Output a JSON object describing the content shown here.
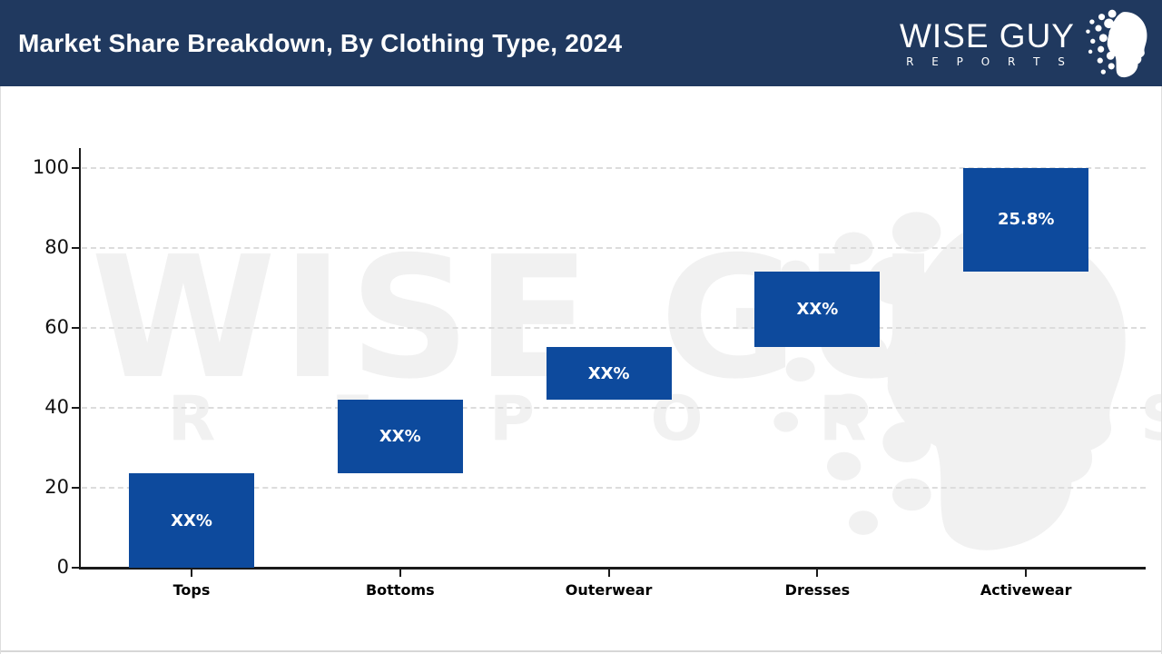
{
  "header": {
    "title": "Market Share Breakdown, By Clothing Type, 2024",
    "logo": {
      "line1": "WISE GUY",
      "line2": "R E P O R T S"
    }
  },
  "watermark": {
    "line1": "WISE GUY",
    "line2": "R E P O R T S"
  },
  "colors": {
    "header_bg": "#20395f",
    "bar_blue": "#0d4a9d",
    "gridline": "#dcdcdc",
    "watermark_gray": "#f1f1f1",
    "axis_black": "#1a1a1a",
    "title_text": "#ffffff",
    "bar_label_text": "#ffffff"
  },
  "chart_data": {
    "type": "bar",
    "subtype": "waterfall",
    "title": "Market Share Breakdown, By Clothing Type, 2024",
    "categories": [
      "Tops",
      "Bottoms",
      "Outerwear",
      "Dresses",
      "Activewear"
    ],
    "segments": [
      {
        "category": "Tops",
        "start": 0,
        "end": 23.6,
        "value": 23.6,
        "label": "XX%"
      },
      {
        "category": "Bottoms",
        "start": 23.6,
        "end": 42.0,
        "value": 18.4,
        "label": "XX%"
      },
      {
        "category": "Outerwear",
        "start": 42.0,
        "end": 55.2,
        "value": 13.2,
        "label": "XX%"
      },
      {
        "category": "Dresses",
        "start": 55.2,
        "end": 74.2,
        "value": 19.0,
        "label": "XX%"
      },
      {
        "category": "Activewear",
        "start": 74.2,
        "end": 100,
        "value": 25.8,
        "label": "25.8%"
      }
    ],
    "yticks": [
      0,
      20,
      40,
      60,
      80,
      100
    ],
    "ylim": [
      0,
      105
    ],
    "xlabel": "",
    "ylabel": "",
    "grid": "horizontal-dashed",
    "legend": "none"
  }
}
